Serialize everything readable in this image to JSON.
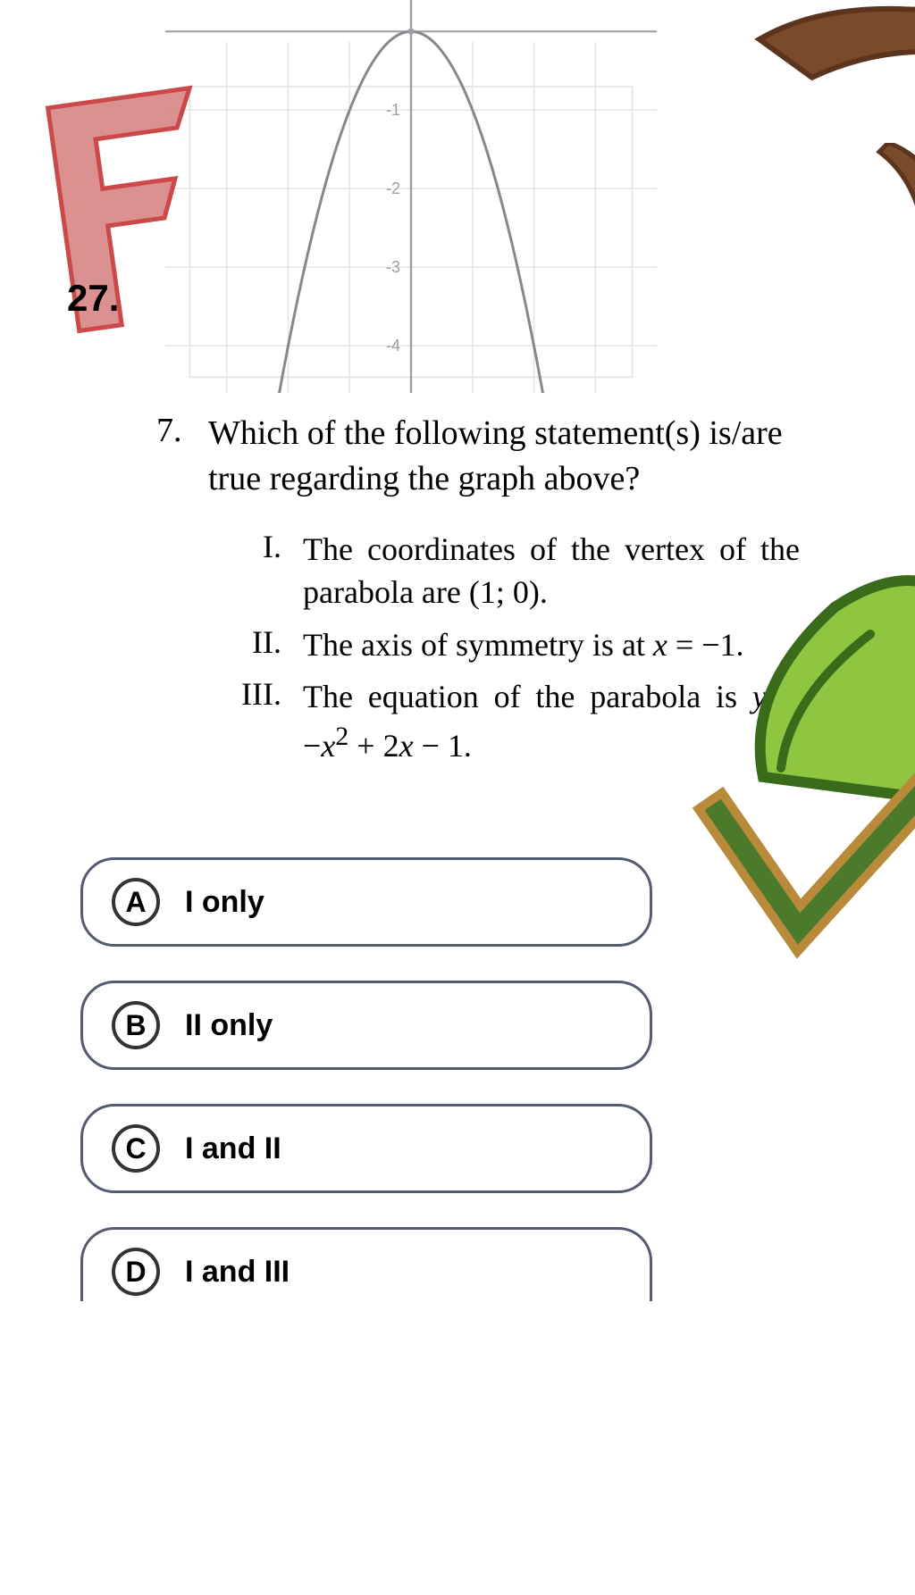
{
  "outer_qnum": "27.",
  "question": {
    "num": "7.",
    "text": "Which of the following statement(s) is/are true regarding the graph above?"
  },
  "statements": [
    {
      "num": "I.",
      "text": "The coordinates of the vertex of the parabola are (1; 0)."
    },
    {
      "num": "II.",
      "html": "The axis of symmetry is at <span class=\"math\">x</span> = −1."
    },
    {
      "num": "III.",
      "html": "The equation of the parabola is <span class=\"math\">y</span> = −<span class=\"math\">x</span><sup>2</sup> + 2<span class=\"math\">x</span> − 1."
    }
  ],
  "options": [
    {
      "letter": "A",
      "text": "I only"
    },
    {
      "letter": "B",
      "text": "II only"
    },
    {
      "letter": "C",
      "text": "I and II"
    },
    {
      "letter": "D",
      "text": "I and III"
    }
  ],
  "graph": {
    "type": "parabola",
    "y_ticks": [
      -1,
      -2,
      -3,
      -4
    ],
    "grid_color": "#e6e6e6",
    "axis_color": "#9aa0a6",
    "curve_color": "#888888",
    "label_color": "#9aa0a6",
    "label_fontsize": 18
  },
  "colors": {
    "option_border": "#555b6e",
    "watermark_outline": "#c83a3a",
    "watermark_fill": "#b85a5a",
    "deco_brown": "#7a4a2a",
    "deco_dkbrown": "#5a341c",
    "deco_green_fill": "#8ec641",
    "deco_green_stroke": "#3a6b1a",
    "deco_gold": "#b88a3a",
    "deco_dkgreen": "#4a7a2a"
  }
}
